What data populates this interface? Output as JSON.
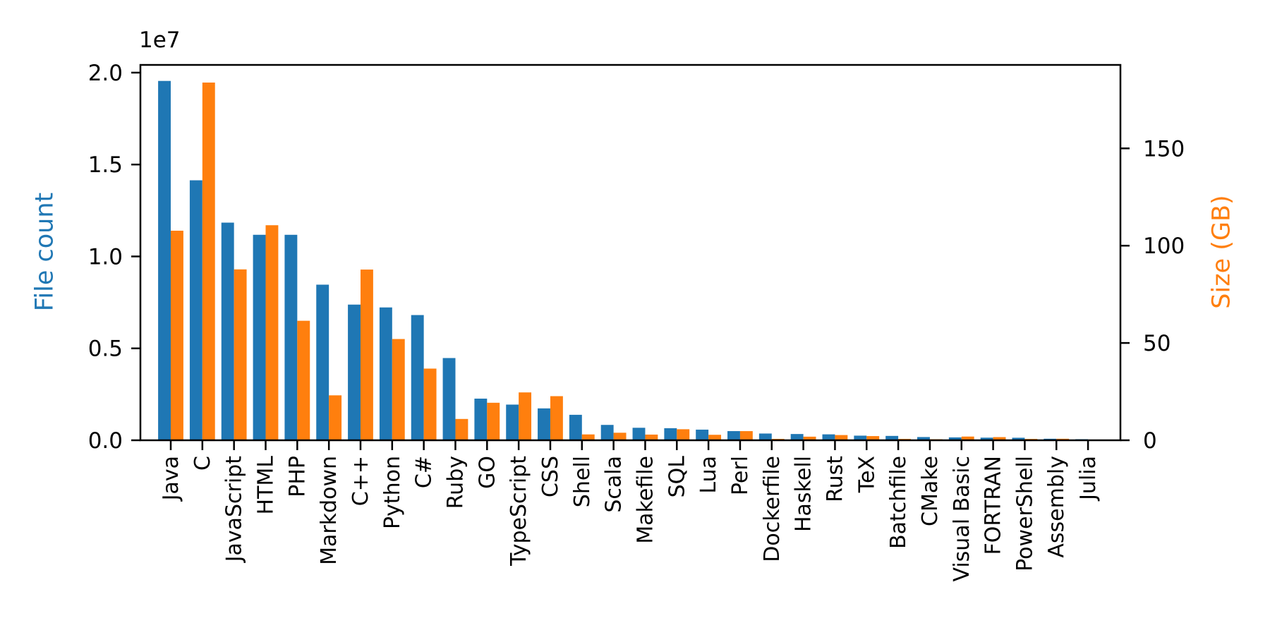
{
  "figure": {
    "background": "#ffffff"
  },
  "chart_data": {
    "type": "bar",
    "title": "",
    "categories": [
      "Java",
      "C",
      "JavaScript",
      "HTML",
      "PHP",
      "Markdown",
      "C++",
      "Python",
      "C#",
      "Ruby",
      "GO",
      "TypeScript",
      "CSS",
      "Shell",
      "Scala",
      "Makefile",
      "SQL",
      "Lua",
      "Perl",
      "Dockerfile",
      "Haskell",
      "Rust",
      "TeX",
      "Batchfile",
      "CMake",
      "Visual Basic",
      "FORTRAN",
      "PowerShell",
      "Assembly",
      "Julia"
    ],
    "series": [
      {
        "name": "File count",
        "axis": "left",
        "color": "#1f77b4",
        "values": [
          19548190,
          14143113,
          11839883,
          11178557,
          11177610,
          8464626,
          7380520,
          7226626,
          6811652,
          4473331,
          2265436,
          1940406,
          1734406,
          1385648,
          835755,
          679430,
          656671,
          578554,
          497949,
          366505,
          340623,
          322431,
          251015,
          236945,
          175282,
          155652,
          142038,
          136846,
          82905,
          58317
        ]
      },
      {
        "name": "Size (GB)",
        "axis": "right",
        "color": "#ff7f0e",
        "values": [
          107.7,
          183.83,
          87.82,
          110.51,
          61.41,
          23.09,
          87.73,
          52.03,
          36.83,
          10.95,
          19.28,
          24.59,
          22.67,
          3.01,
          3.87,
          2.92,
          5.67,
          2.81,
          4.7,
          0.71,
          1.85,
          2.68,
          2.15,
          0.7,
          0.54,
          1.91,
          1.62,
          0.69,
          0.78,
          0.29
        ]
      }
    ],
    "left_axis": {
      "label": "File count",
      "offset_label": "1e7",
      "tick_values": [
        0,
        5000000,
        10000000,
        15000000,
        20000000
      ],
      "tick_labels": [
        "0.0",
        "0.5",
        "1.0",
        "1.5",
        "2.0"
      ],
      "min": 0,
      "max": 20420000,
      "color": "#1f77b4"
    },
    "right_axis": {
      "label": "Size (GB)",
      "tick_values": [
        0,
        50,
        100,
        150
      ],
      "tick_labels": [
        "0",
        "50",
        "100",
        "150"
      ],
      "min": 0,
      "max": 192.9,
      "color": "#ff7f0e"
    },
    "grid": false,
    "legend": "none",
    "spine_color": "#000000",
    "tick_label_color": "#000000"
  }
}
